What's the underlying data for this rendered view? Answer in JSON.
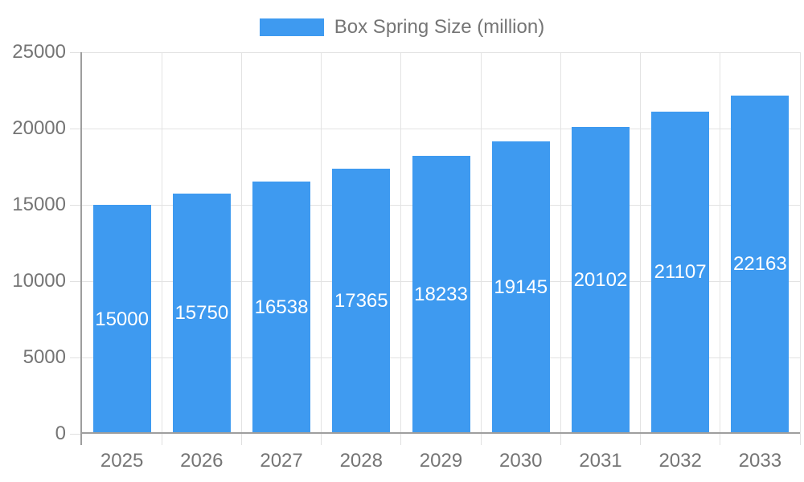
{
  "legend": {
    "label": "Box Spring Size (million)"
  },
  "chart_data": {
    "type": "bar",
    "title": "",
    "xlabel": "",
    "ylabel": "",
    "series_name": "Box Spring Size (million)",
    "categories": [
      "2025",
      "2026",
      "2027",
      "2028",
      "2029",
      "2030",
      "2031",
      "2032",
      "2033"
    ],
    "values": [
      15000,
      15750,
      16538,
      17365,
      18233,
      19145,
      20102,
      21107,
      22163
    ],
    "bar_value_labels": [
      "15000",
      "15750",
      "16538",
      "17365",
      "18233",
      "19145",
      "20102",
      "21107",
      "22163"
    ],
    "ylim": [
      0,
      25000
    ],
    "yticks": [
      0,
      5000,
      10000,
      15000,
      20000,
      25000
    ],
    "ytick_labels": [
      "0",
      "5000",
      "10000",
      "15000",
      "20000",
      "25000"
    ],
    "grid": true,
    "legend_position": "top-center",
    "value_labels_inside_bars": true,
    "colors": {
      "bar": "#3e9af0",
      "axis_line": "#9e9e9e",
      "gridline": "#e3e3e3",
      "tick": "#e0e0e0",
      "tick_label_text": "#757575",
      "legend_text": "#757575",
      "bar_label_text": "#ffffff"
    }
  }
}
